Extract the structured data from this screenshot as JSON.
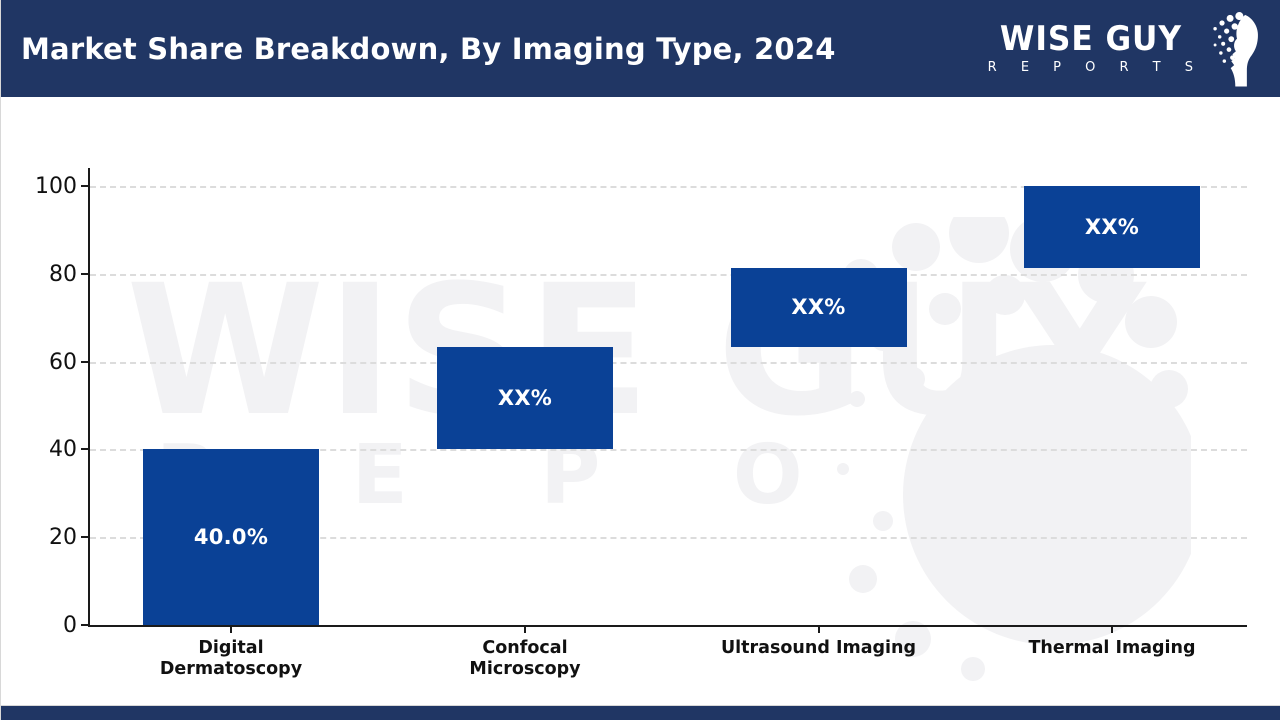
{
  "header": {
    "title": "Market Share Breakdown, By Imaging Type, 2024",
    "bg_color": "#203664",
    "logo": {
      "wordmark": "WISE GUY",
      "subtext": "R E P O R T S"
    }
  },
  "watermark": {
    "wordmark": "WISE GUY",
    "subtext": "R E P O R T S"
  },
  "chart_data": {
    "type": "bar",
    "subtype": "waterfall",
    "title": "Market Share Breakdown, By Imaging Type, 2024",
    "categories": [
      "Digital Dermatoscopy",
      "Confocal Microscopy",
      "Ultrasound Imaging",
      "Thermal Imaging"
    ],
    "category_label_lines": [
      [
        "Digital",
        "Dermatoscopy"
      ],
      [
        "Confocal",
        "Microscopy"
      ],
      [
        "Ultrasound Imaging"
      ],
      [
        "Thermal Imaging"
      ]
    ],
    "segments": [
      {
        "name": "Digital Dermatoscopy",
        "start": 0,
        "end": 40,
        "label": "40.0%"
      },
      {
        "name": "Confocal Microscopy",
        "start": 40,
        "end": 63.4,
        "label": "XX%"
      },
      {
        "name": "Ultrasound Imaging",
        "start": 63.4,
        "end": 81.4,
        "label": "XX%"
      },
      {
        "name": "Thermal Imaging",
        "start": 81.4,
        "end": 100,
        "label": "XX%"
      }
    ],
    "yticks": [
      0,
      20,
      40,
      60,
      80,
      100
    ],
    "ylim": [
      0,
      104
    ],
    "xlabel": "",
    "ylabel": "",
    "grid": "horizontal-dashed",
    "legend": "none",
    "bar_color": "#0a4196",
    "bar_label_color": "#ffffff",
    "gridline_color": "#dcdcdc",
    "watermark_color": "#f2f2f4"
  }
}
